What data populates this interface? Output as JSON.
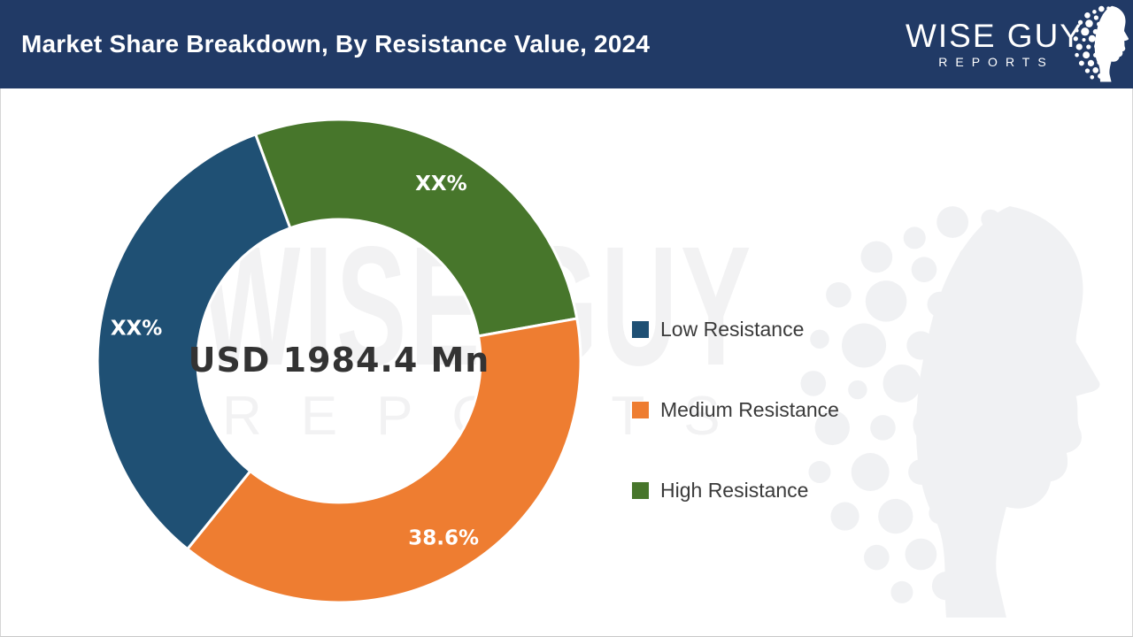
{
  "header": {
    "title": "Market Share Breakdown, By Resistance Value, 2024",
    "logo": {
      "line1": "WISE GUY",
      "line2": "REPORTS"
    }
  },
  "watermark": {
    "line1": "WISE GUY",
    "line2": "REPORTS"
  },
  "chart_data": {
    "type": "pie",
    "donut": true,
    "title": "Market Share Breakdown, By Resistance Value, 2024",
    "center_label": "USD 1984.4 Mn",
    "start_angle_deg": -20.2,
    "legend_position": "right",
    "segments": [
      {
        "name": "High Resistance",
        "display_label": "XX%",
        "value_pct": 27.8,
        "color": "#47762B"
      },
      {
        "name": "Medium Resistance",
        "display_label": "38.6%",
        "value_pct": 38.6,
        "color": "#EE7D31"
      },
      {
        "name": "Low Resistance",
        "display_label": "XX%",
        "value_pct": 33.6,
        "color": "#1F5074"
      }
    ],
    "legend": [
      {
        "label": "Low Resistance",
        "color": "#1F5074"
      },
      {
        "label": "Medium Resistance",
        "color": "#EE7D31"
      },
      {
        "label": "High Resistance",
        "color": "#47762B"
      }
    ]
  },
  "colors": {
    "header_bg": "#213A66",
    "blue": "#1F5074",
    "orange": "#EE7D31",
    "green": "#47762B",
    "center_text": "#333333",
    "watermark": "#F2F2F3"
  }
}
